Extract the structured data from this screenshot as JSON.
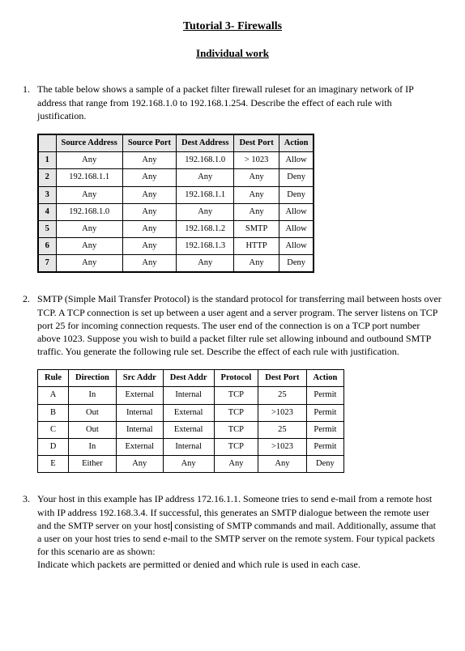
{
  "title": "Tutorial 3- Firewalls",
  "subtitle": "Individual work",
  "q1": {
    "num": "1.",
    "text": "The table below shows a sample of a packet filter firewall ruleset for an imaginary network of IP address that range from 192.168.1.0 to 192.168.1.254. Describe the effect of each rule with justification.",
    "headers": [
      "",
      "Source Address",
      "Source Port",
      "Dest Address",
      "Dest Port",
      "Action"
    ],
    "rows": [
      [
        "1",
        "Any",
        "Any",
        "192.168.1.0",
        "> 1023",
        "Allow"
      ],
      [
        "2",
        "192.168.1.1",
        "Any",
        "Any",
        "Any",
        "Deny"
      ],
      [
        "3",
        "Any",
        "Any",
        "192.168.1.1",
        "Any",
        "Deny"
      ],
      [
        "4",
        "192.168.1.0",
        "Any",
        "Any",
        "Any",
        "Allow"
      ],
      [
        "5",
        "Any",
        "Any",
        "192.168.1.2",
        "SMTP",
        "Allow"
      ],
      [
        "6",
        "Any",
        "Any",
        "192.168.1.3",
        "HTTP",
        "Allow"
      ],
      [
        "7",
        "Any",
        "Any",
        "Any",
        "Any",
        "Deny"
      ]
    ]
  },
  "q2": {
    "num": "2.",
    "text": "SMTP (Simple Mail Transfer Protocol) is the standard protocol for transferring mail between hosts over TCP. A TCP connection is set up between a user agent and a server program. The server listens on TCP port 25 for incoming connection requests. The user end of the connection is on a TCP port number above 1023. Suppose you wish to build a packet filter rule set allowing inbound and outbound SMTP traffic. You generate the following rule set. Describe the effect of each rule with justification.",
    "headers": [
      "Rule",
      "Direction",
      "Src Addr",
      "Dest Addr",
      "Protocol",
      "Dest Port",
      "Action"
    ],
    "rows": [
      [
        "A",
        "In",
        "External",
        "Internal",
        "TCP",
        "25",
        "Permit"
      ],
      [
        "B",
        "Out",
        "Internal",
        "External",
        "TCP",
        ">1023",
        "Permit"
      ],
      [
        "C",
        "Out",
        "Internal",
        "External",
        "TCP",
        "25",
        "Permit"
      ],
      [
        "D",
        "In",
        "External",
        "Internal",
        "TCP",
        ">1023",
        "Permit"
      ],
      [
        "E",
        "Either",
        "Any",
        "Any",
        "Any",
        "Any",
        "Deny"
      ]
    ]
  },
  "q3": {
    "num": "3.",
    "text_a": "Your host in this example has IP address 172.16.1.1. Someone tries to send e-mail from a remote host with IP address 192.168.3.4. If successful, this generates an SMTP dialogue between the remote user and the SMTP server on your host",
    "text_b": "consisting of SMTP commands and mail. Additionally, assume that a user on your host tries to send e-mail to the SMTP server on the remote system. Four typical packets for this scenario are as shown:",
    "text_c": "Indicate which packets are permitted or denied and which rule is used in each case."
  }
}
